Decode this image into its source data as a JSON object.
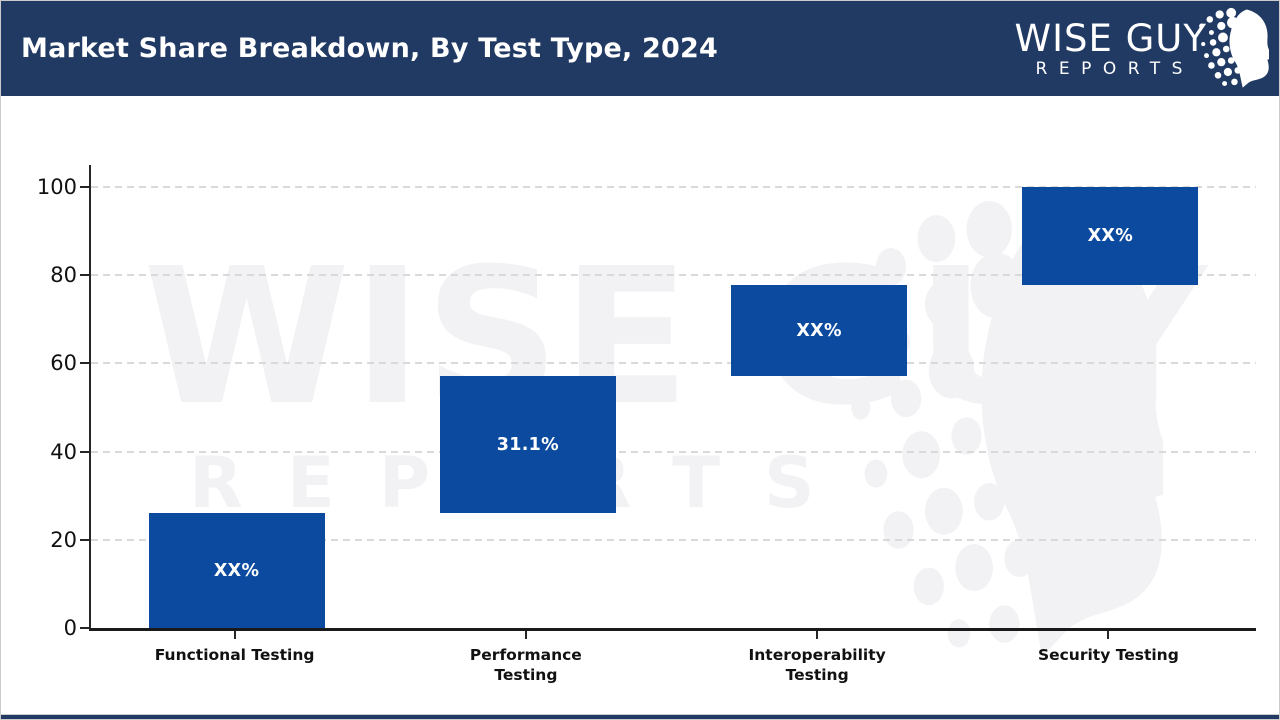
{
  "header": {
    "title": "Market Share Breakdown, By Test Type, 2024",
    "logo": {
      "line1": "WISE GUY",
      "line2": "REPORTS",
      "head_icon": "dotted-profile-head"
    }
  },
  "watermark": {
    "line1": "WISE GUY",
    "line2": "REPORTS"
  },
  "chart_data": {
    "type": "bar",
    "subtype": "floating-waterfall",
    "title": "Market Share Breakdown, By Test Type, 2024",
    "categories": [
      "Functional Testing",
      "Performance\nTesting",
      "Interoperability\nTesting",
      "Security Testing"
    ],
    "series": [
      {
        "name": "Market Share (%)",
        "segment_start": [
          0,
          26,
          57.1,
          77.8
        ],
        "segment_end": [
          26,
          57.1,
          77.8,
          100
        ],
        "values": [
          26,
          31.1,
          20.7,
          22.2
        ],
        "bar_labels": [
          "XX%",
          "31.1%",
          "XX%",
          "XX%"
        ]
      }
    ],
    "xlabel": "",
    "ylabel": "",
    "yticks": [
      0,
      20,
      40,
      60,
      80,
      100
    ],
    "ylim": [
      0,
      105
    ],
    "grid": "horizontal-dashed",
    "legend": "none"
  },
  "colors": {
    "header_bg": "#213a64",
    "footer_bg": "#213a64",
    "bar": "#0b4a9e",
    "bar_label": "#ffffff",
    "axis": "#262626",
    "grid": "#d9d9d9",
    "watermark": "#f2f2f5",
    "page_border": "#cbcbcb"
  }
}
